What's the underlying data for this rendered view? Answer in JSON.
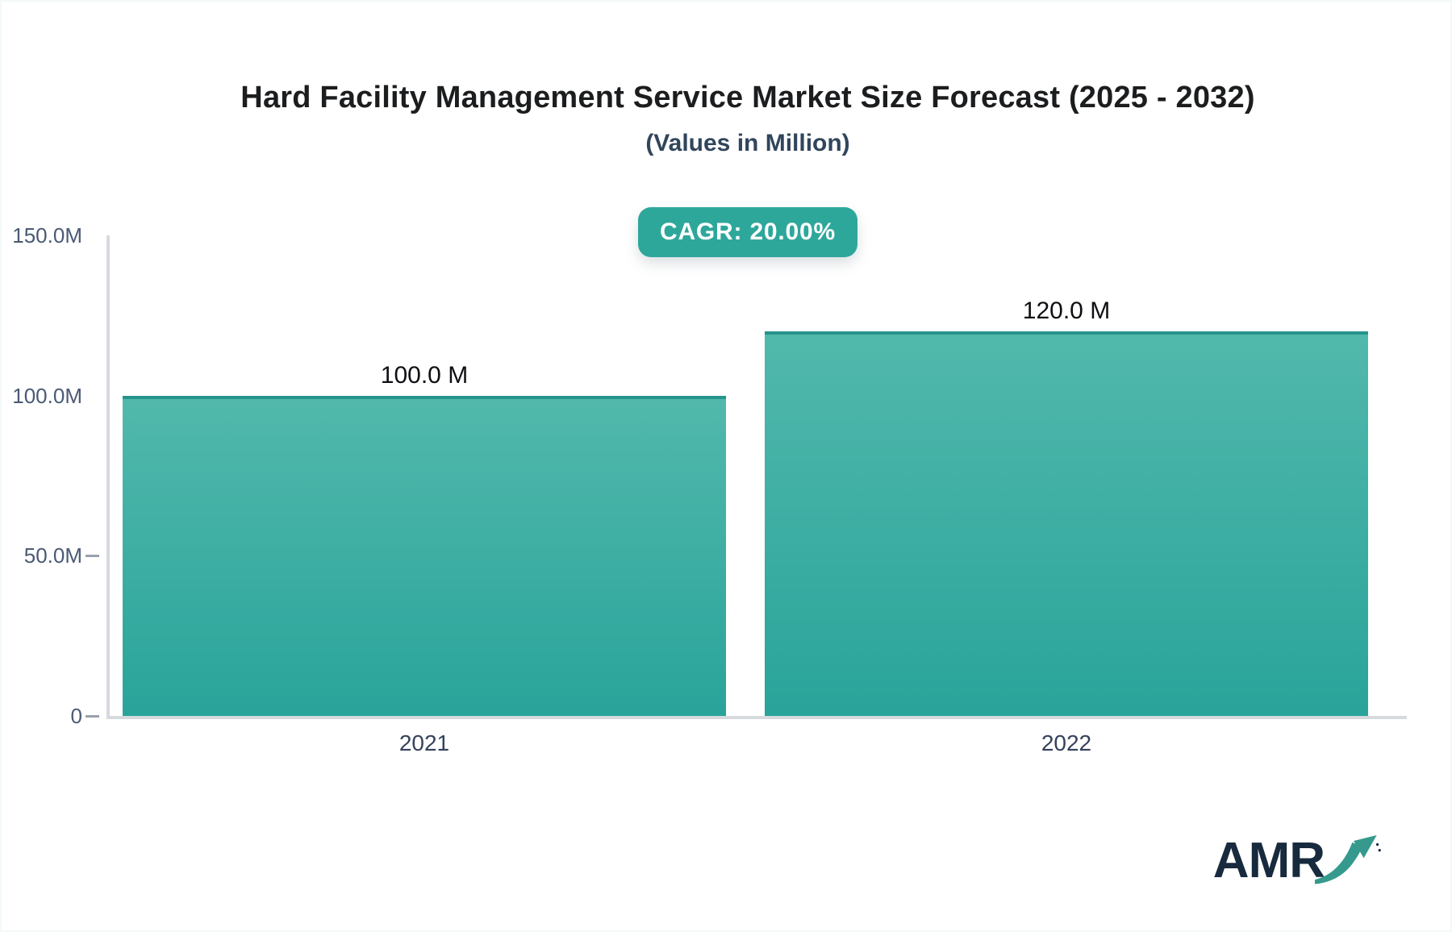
{
  "title": "Hard Facility Management Service Market Size Forecast (2025 - 2032)",
  "subtitle": "(Values in Million)",
  "badge": {
    "label": "CAGR: 20.00%"
  },
  "watermark": {
    "text": "AMR"
  },
  "colors": {
    "bar_fill_top": "#52b8ac",
    "bar_fill_bottom": "#29a49a",
    "bar_border_top": "#27948c",
    "badge_bg": "#2ea79b",
    "badge_text": "#ffffff",
    "axis_line": "#d6d9de",
    "tick_dash": "#98a1ac",
    "tick_text": "#4a5a74",
    "category_text": "#35425c",
    "value_label_text": "#0d0f12",
    "title_text": "#1b1d1f",
    "subtitle_text": "#31455c",
    "logo_text": "#172a3e",
    "logo_arrow": "#359a8d"
  },
  "chart_data": {
    "type": "bar",
    "title": "Hard Facility Management Service Market Size Forecast (2025 - 2032)",
    "subtitle": "(Values in Million)",
    "unit": "Million",
    "cagr_percent": 20.0,
    "categories": [
      "2021",
      "2022"
    ],
    "values": [
      100.0,
      120.0
    ],
    "value_labels": [
      "100.0 M",
      "120.0 M"
    ],
    "xlabel": "",
    "ylabel": "",
    "ylim": [
      0,
      150
    ],
    "yticks": [
      {
        "label": "150.0M",
        "value": 150,
        "dash": false
      },
      {
        "label": "100.0M",
        "value": 100,
        "dash": false
      },
      {
        "label": "50.0M",
        "value": 50,
        "dash": true
      },
      {
        "label": "0",
        "value": 0,
        "dash": true
      }
    ],
    "grid": false,
    "legend": false
  }
}
